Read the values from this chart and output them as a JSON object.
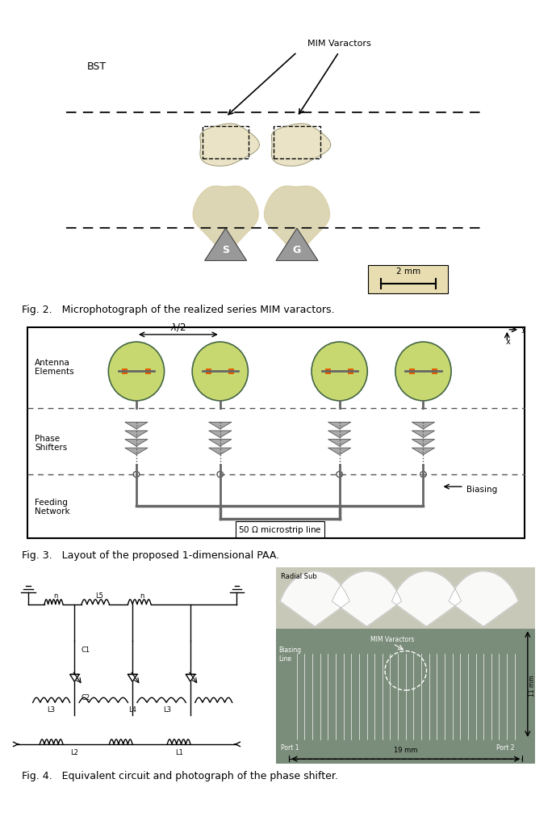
{
  "fig_width": 6.84,
  "fig_height": 10.12,
  "bg_color": "#ffffff",
  "fig2_caption": "Fig. 2.   Microphotograph of the realized series MIM varactors.",
  "fig3_caption": "Fig. 3.   Layout of the proposed 1-dimensional PAA.",
  "fig4_caption": "Fig. 4.   Equivalent circuit and photograph of the phase shifter.",
  "fig2_photo_bg": "#c8b87a",
  "antenna_fill": "#c8d870",
  "orange_color": "#e06000"
}
